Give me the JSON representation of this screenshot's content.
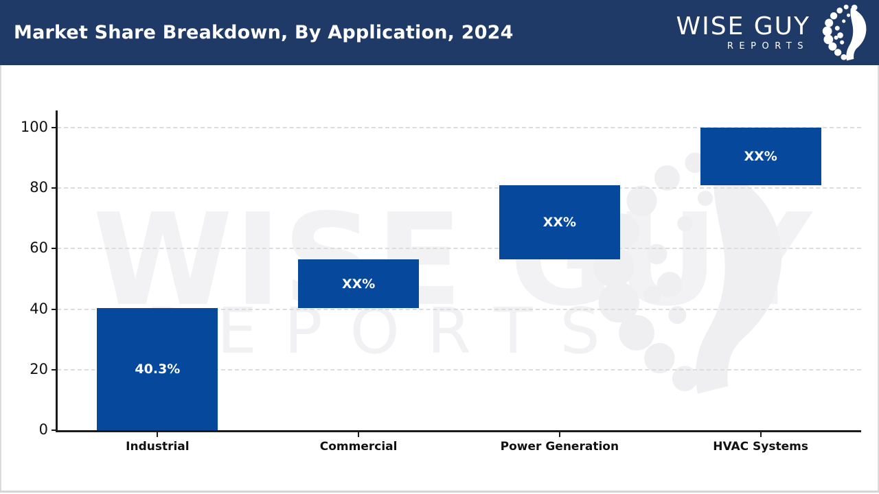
{
  "header": {
    "background": "#203a68",
    "title": "Market Share Breakdown, By Application, 2024",
    "title_color": "#ffffff",
    "logo": {
      "name": "Wise Guy Reports",
      "line1": "WISE GUY",
      "line2": "REPORTS"
    }
  },
  "watermark": {
    "line1": "WISE GUY",
    "line2": "REPORTS",
    "color": "#f2f2f4"
  },
  "chart_data": {
    "type": "bar",
    "subtype": "waterfall",
    "title": "Market Share Breakdown, By Application, 2024",
    "categories": [
      "Industrial",
      "Commercial",
      "Power Generation",
      "HVAC Systems"
    ],
    "segments": [
      {
        "category": "Industrial",
        "start": 0,
        "end": 40.3,
        "label": "40.3%",
        "value_masked": false
      },
      {
        "category": "Commercial",
        "start": 40.3,
        "end": 56.5,
        "label": "XX%",
        "value_masked": true
      },
      {
        "category": "Power Generation",
        "start": 56.5,
        "end": 81.0,
        "label": "XX%",
        "value_masked": true
      },
      {
        "category": "HVAC Systems",
        "start": 81.0,
        "end": 100.0,
        "label": "XX%",
        "value_masked": true
      }
    ],
    "xlabel": "",
    "ylabel": "",
    "ylim": [
      0,
      100
    ],
    "yticks": [
      0,
      20,
      40,
      60,
      80,
      100
    ],
    "grid": "horizontal-dashed",
    "legend": "none",
    "bar_color": "#05489c",
    "bar_label_color": "#ffffff",
    "axis_color": "#1a1a1a",
    "gridline_color": "#dcdcdc"
  }
}
